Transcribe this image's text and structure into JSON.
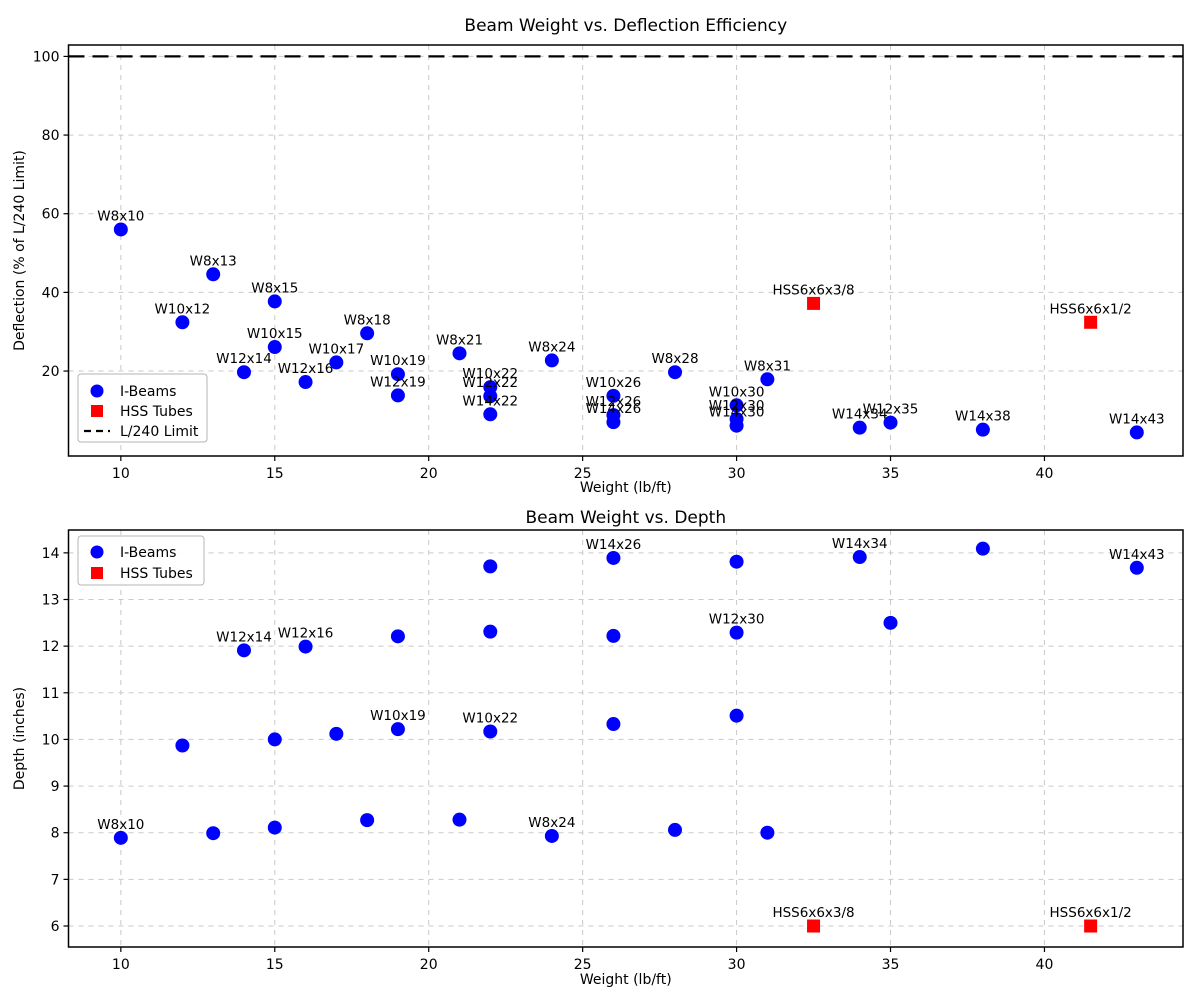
{
  "figure": {
    "background": "#ffffff",
    "ibeam_color": "#0000ff",
    "hss_color": "#ff0000",
    "limit_color": "#000000",
    "grid_color": "#c9c9c9"
  },
  "chart_data": [
    {
      "type": "scatter",
      "title": "Beam Weight vs. Deflection Efficiency",
      "xlabel": "Weight (lb/ft)",
      "ylabel": "Deflection (% of L/240 Limit)",
      "xlim": [
        8.3,
        44.5
      ],
      "ylim": [
        -1.6,
        102.9
      ],
      "xticks": [
        10,
        15,
        20,
        25,
        30,
        35,
        40
      ],
      "yticks": [
        20,
        40,
        60,
        80,
        100
      ],
      "grid": true,
      "limit_line": {
        "label": "L/240 Limit",
        "y": 100
      },
      "legend": {
        "position": "lower left",
        "entries": [
          {
            "label": "I-Beams",
            "marker": "circle",
            "color": "#0000ff"
          },
          {
            "label": "HSS Tubes",
            "marker": "square",
            "color": "#ff0000"
          },
          {
            "label": "L/240 Limit",
            "marker": "dashed-line",
            "color": "#000000"
          }
        ]
      },
      "series": [
        {
          "name": "I-Beams",
          "marker": "circle",
          "color": "#0000ff",
          "points": [
            {
              "label": "W8x10",
              "x": 10,
              "y": 56.0,
              "annotate": true
            },
            {
              "label": "W10x12",
              "x": 12,
              "y": 32.4,
              "annotate": true
            },
            {
              "label": "W8x13",
              "x": 13,
              "y": 44.6,
              "annotate": true
            },
            {
              "label": "W12x14",
              "x": 14,
              "y": 19.7,
              "annotate": true
            },
            {
              "label": "W8x15",
              "x": 15,
              "y": 37.7,
              "annotate": true
            },
            {
              "label": "W10x15",
              "x": 15,
              "y": 26.1,
              "annotate": true
            },
            {
              "label": "W12x16",
              "x": 16,
              "y": 17.2,
              "annotate": true
            },
            {
              "label": "W10x17",
              "x": 17,
              "y": 22.2,
              "annotate": true
            },
            {
              "label": "W8x18",
              "x": 18,
              "y": 29.6,
              "annotate": true
            },
            {
              "label": "W10x19",
              "x": 19,
              "y": 19.2,
              "annotate": true
            },
            {
              "label": "W12x19",
              "x": 19,
              "y": 13.8,
              "annotate": true
            },
            {
              "label": "W8x21",
              "x": 21,
              "y": 24.5,
              "annotate": true
            },
            {
              "label": "W10x22",
              "x": 22,
              "y": 15.9,
              "annotate": true
            },
            {
              "label": "W12x22",
              "x": 22,
              "y": 13.6,
              "annotate": true
            },
            {
              "label": "W14x22",
              "x": 22,
              "y": 9.0,
              "annotate": true
            },
            {
              "label": "W8x24",
              "x": 24,
              "y": 22.7,
              "annotate": true
            },
            {
              "label": "W10x26",
              "x": 26,
              "y": 13.7,
              "annotate": true
            },
            {
              "label": "W12x26",
              "x": 26,
              "y": 8.8,
              "annotate": true
            },
            {
              "label": "W14x26",
              "x": 26,
              "y": 7.0,
              "annotate": true
            },
            {
              "label": "W8x28",
              "x": 28,
              "y": 19.7,
              "annotate": true
            },
            {
              "label": "W10x30",
              "x": 30,
              "y": 11.3,
              "annotate": true
            },
            {
              "label": "W12x30",
              "x": 30,
              "y": 7.8,
              "annotate": true
            },
            {
              "label": "W14x30",
              "x": 30,
              "y": 6.1,
              "annotate": true
            },
            {
              "label": "W8x31",
              "x": 31,
              "y": 17.9,
              "annotate": true
            },
            {
              "label": "W14x34",
              "x": 34,
              "y": 5.6,
              "annotate": true
            },
            {
              "label": "W12x35",
              "x": 35,
              "y": 6.9,
              "annotate": true
            },
            {
              "label": "W14x38",
              "x": 38,
              "y": 5.1,
              "annotate": true
            },
            {
              "label": "W14x43",
              "x": 43,
              "y": 4.4,
              "annotate": true
            }
          ]
        },
        {
          "name": "HSS Tubes",
          "marker": "square",
          "color": "#ff0000",
          "points": [
            {
              "label": "HSS6x6x3/8",
              "x": 32.5,
              "y": 37.2,
              "annotate": true
            },
            {
              "label": "HSS6x6x1/2",
              "x": 41.5,
              "y": 32.4,
              "annotate": true
            }
          ]
        }
      ]
    },
    {
      "type": "scatter",
      "title": "Beam Weight vs. Depth",
      "xlabel": "Weight (lb/ft)",
      "ylabel": "Depth (inches)",
      "xlim": [
        8.3,
        44.5
      ],
      "ylim": [
        5.55,
        14.49
      ],
      "xticks": [
        10,
        15,
        20,
        25,
        30,
        35,
        40
      ],
      "yticks": [
        6,
        7,
        8,
        9,
        10,
        11,
        12,
        13,
        14
      ],
      "grid": true,
      "legend": {
        "position": "upper left",
        "entries": [
          {
            "label": "I-Beams",
            "marker": "circle",
            "color": "#0000ff"
          },
          {
            "label": "HSS Tubes",
            "marker": "square",
            "color": "#ff0000"
          }
        ]
      },
      "series": [
        {
          "name": "I-Beams",
          "marker": "circle",
          "color": "#0000ff",
          "points": [
            {
              "label": "W8x10",
              "x": 10,
              "y": 7.89,
              "annotate": true
            },
            {
              "label": "W10x12",
              "x": 12,
              "y": 9.87,
              "annotate": false
            },
            {
              "label": "W8x13",
              "x": 13,
              "y": 7.99,
              "annotate": false
            },
            {
              "label": "W12x14",
              "x": 14,
              "y": 11.91,
              "annotate": true
            },
            {
              "label": "W8x15",
              "x": 15,
              "y": 8.11,
              "annotate": false
            },
            {
              "label": "W10x15",
              "x": 15,
              "y": 10.0,
              "annotate": false
            },
            {
              "label": "W12x16",
              "x": 16,
              "y": 11.99,
              "annotate": true
            },
            {
              "label": "W10x17",
              "x": 17,
              "y": 10.12,
              "annotate": false
            },
            {
              "label": "W8x18",
              "x": 18,
              "y": 8.27,
              "annotate": false
            },
            {
              "label": "W10x19",
              "x": 19,
              "y": 10.22,
              "annotate": true
            },
            {
              "label": "W12x19",
              "x": 19,
              "y": 12.21,
              "annotate": false
            },
            {
              "label": "W8x21",
              "x": 21,
              "y": 8.28,
              "annotate": false
            },
            {
              "label": "W10x22",
              "x": 22,
              "y": 10.17,
              "annotate": true
            },
            {
              "label": "W12x22",
              "x": 22,
              "y": 12.31,
              "annotate": false
            },
            {
              "label": "W14x22",
              "x": 22,
              "y": 13.71,
              "annotate": false
            },
            {
              "label": "W8x24",
              "x": 24,
              "y": 7.93,
              "annotate": true
            },
            {
              "label": "W10x26",
              "x": 26,
              "y": 10.33,
              "annotate": false
            },
            {
              "label": "W12x26",
              "x": 26,
              "y": 12.22,
              "annotate": false
            },
            {
              "label": "W14x26",
              "x": 26,
              "y": 13.89,
              "annotate": true
            },
            {
              "label": "W8x28",
              "x": 28,
              "y": 8.06,
              "annotate": false
            },
            {
              "label": "W10x30",
              "x": 30,
              "y": 10.51,
              "annotate": false
            },
            {
              "label": "W12x30",
              "x": 30,
              "y": 12.29,
              "annotate": true
            },
            {
              "label": "W14x30",
              "x": 30,
              "y": 13.81,
              "annotate": false
            },
            {
              "label": "W8x31",
              "x": 31,
              "y": 8.0,
              "annotate": false
            },
            {
              "label": "W14x34",
              "x": 34,
              "y": 13.91,
              "annotate": true
            },
            {
              "label": "W12x35",
              "x": 35,
              "y": 12.5,
              "annotate": false
            },
            {
              "label": "W14x38",
              "x": 38,
              "y": 14.09,
              "annotate": false
            },
            {
              "label": "W14x43",
              "x": 43,
              "y": 13.68,
              "annotate": true
            }
          ]
        },
        {
          "name": "HSS Tubes",
          "marker": "square",
          "color": "#ff0000",
          "points": [
            {
              "label": "HSS6x6x3/8",
              "x": 32.5,
              "y": 6.0,
              "annotate": true
            },
            {
              "label": "HSS6x6x1/2",
              "x": 41.5,
              "y": 6.0,
              "annotate": true
            }
          ]
        }
      ]
    }
  ]
}
